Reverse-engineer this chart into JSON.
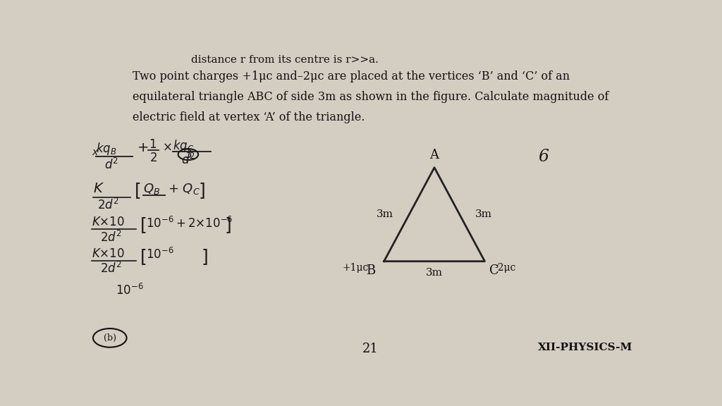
{
  "background_color": "#d4cdc2",
  "top_text": "distance r from its centre is r>>a.",
  "problem_lines": [
    "Two point charges +1μc and–2μc are placed at the vertices ‘B’ and ‘C’ of an",
    "equilateral triangle ABC of side 3m as shown in the figure. Calculate magnitude of",
    "electric field at vertex ‘A’ of the triangle."
  ],
  "triangle": {
    "A": [
      0.615,
      0.38
    ],
    "B": [
      0.525,
      0.68
    ],
    "C": [
      0.705,
      0.68
    ],
    "label_A": "A",
    "label_B": "B",
    "label_C": "C",
    "charge_B": "+1μc",
    "charge_C": "-2μc",
    "side_AB": "3m",
    "side_AC": "3m",
    "side_BC": "3m",
    "line_color": "#222222",
    "line_width": 2.0
  },
  "page_number": "21",
  "footer_text": "XII-PHYSICS-M",
  "six_text": "6"
}
